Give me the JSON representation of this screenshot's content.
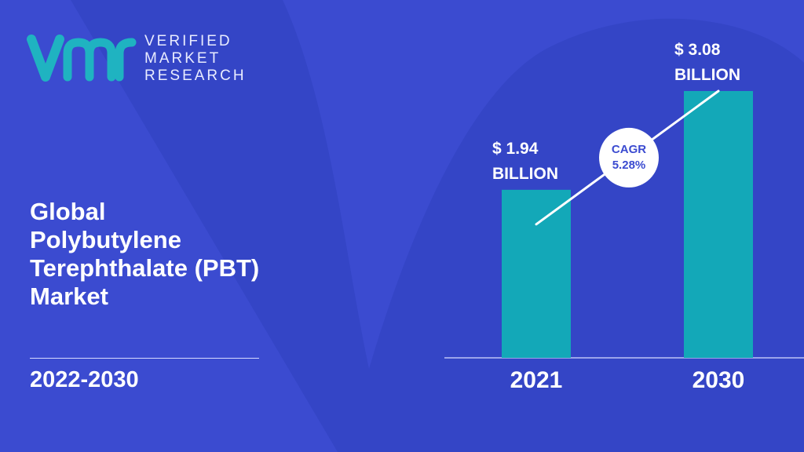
{
  "colors": {
    "background": "#3b4bd0",
    "background_shape": "#3344c4",
    "bar": "#13a8b8",
    "text": "#ffffff",
    "cagr_text": "#3b4bd0",
    "logo_teal": "#1fb3c1"
  },
  "logo": {
    "icon": "vmr-logo-icon",
    "line1": "VERIFIED",
    "line2": "MARKET",
    "line3": "RESEARCH"
  },
  "title_lines": [
    "Global",
    "Polybutylene",
    "Terephthalate (PBT)",
    "Market"
  ],
  "period": "2022-2030",
  "chart_data": {
    "type": "bar",
    "categories": [
      "2021",
      "2030"
    ],
    "values": [
      1.94,
      3.08
    ],
    "value_labels": [
      [
        "$ 1.94",
        "BILLION"
      ],
      [
        "$ 3.08",
        "BILLION"
      ]
    ],
    "cagr": {
      "label": "CAGR",
      "value": "5.28%"
    },
    "ylim": [
      0,
      3.08
    ],
    "grid": false,
    "legend": "none"
  }
}
